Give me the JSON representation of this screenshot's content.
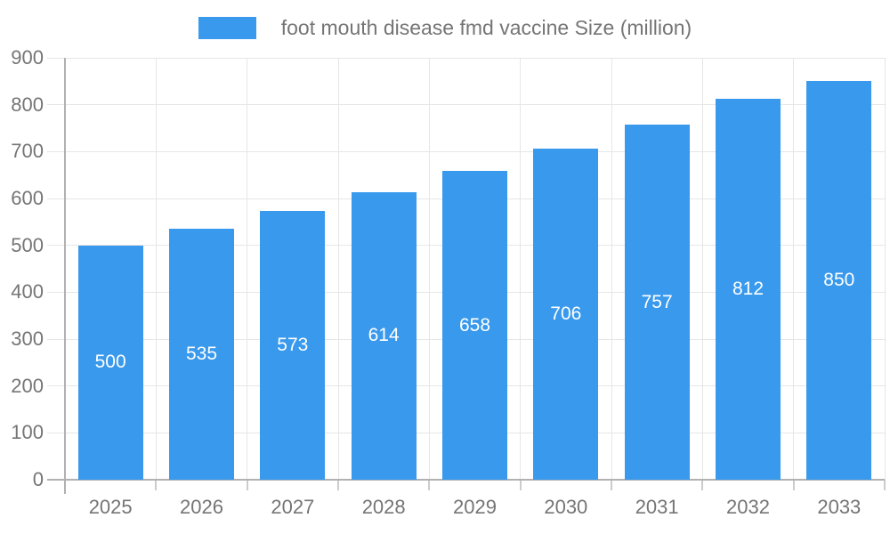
{
  "chart_data": {
    "type": "bar",
    "title": "",
    "categories": [
      "2025",
      "2026",
      "2027",
      "2028",
      "2029",
      "2030",
      "2031",
      "2032",
      "2033"
    ],
    "series": [
      {
        "name": "foot mouth disease fmd vaccine Size (million)",
        "values": [
          500,
          535,
          573,
          614,
          658,
          706,
          757,
          812,
          850
        ]
      }
    ],
    "xlabel": "",
    "ylabel": "",
    "ylim": [
      0,
      900
    ],
    "ytick_step": 100,
    "ytick_labels": [
      "0",
      "100",
      "200",
      "300",
      "400",
      "500",
      "600",
      "700",
      "800",
      "900"
    ],
    "grid": true,
    "legend_position": "top",
    "bar_labels_shown": true,
    "colors": {
      "bar": "#3999ec",
      "bar_label": "#ffffff",
      "axis_text": "#757575",
      "grid_line": "#e6e6e6",
      "axis_line": "#b1b1b1",
      "tick_line": "#cccccc",
      "background": "#ffffff"
    }
  }
}
